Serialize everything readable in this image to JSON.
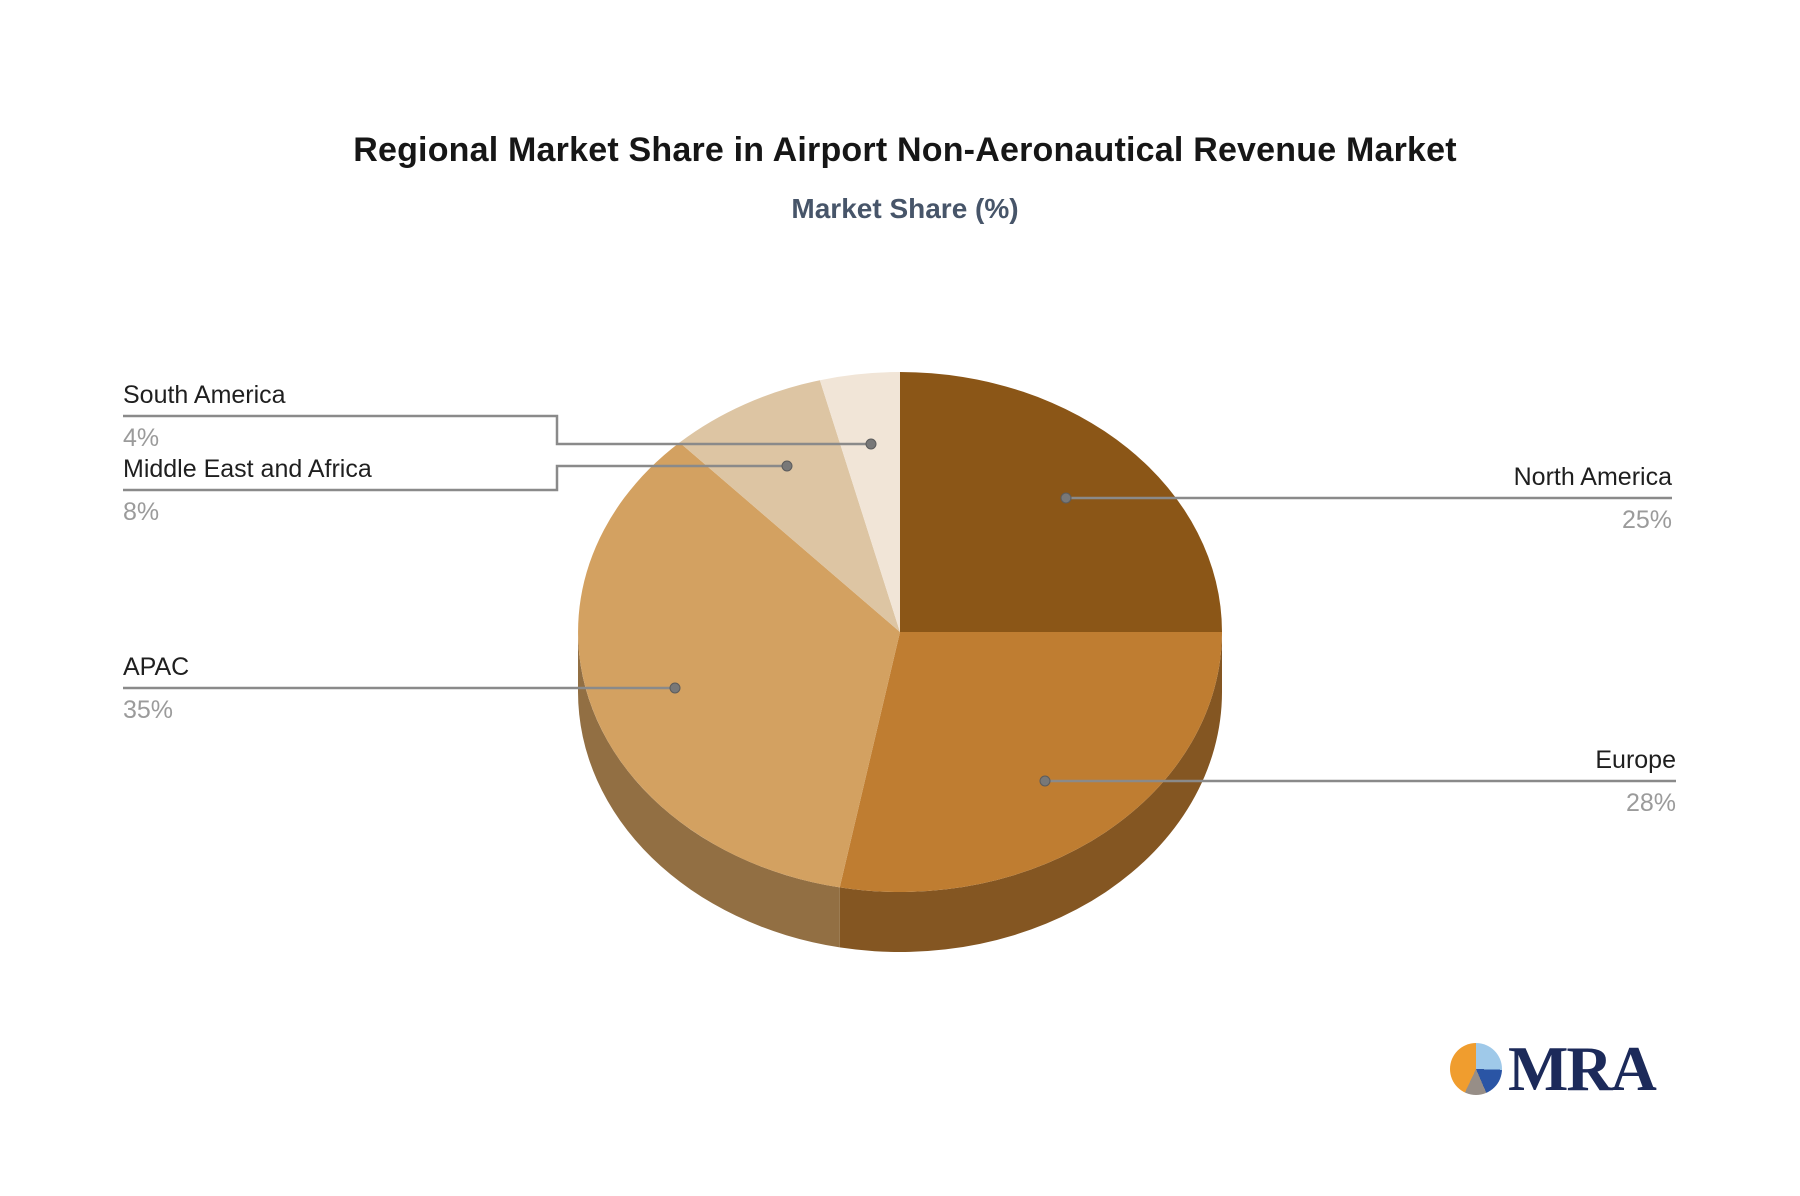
{
  "title": "Regional Market Share in Airport Non-Aeronautical Revenue Market",
  "subtitle": "Market Share (%)",
  "logo": {
    "text": "MRA"
  },
  "chart_data": {
    "type": "pie",
    "style": "3d",
    "title": "Regional Market Share in Airport Non-Aeronautical Revenue Market",
    "subtitle": "Market Share (%)",
    "unit": "%",
    "start_angle": "12 o'clock",
    "direction": "clockwise",
    "legend_position": "none (leader-line callout labels)",
    "slices": [
      {
        "label": "North America",
        "value": 25,
        "pct_label": "25%",
        "color": "#8B5617"
      },
      {
        "label": "Europe",
        "value": 28,
        "pct_label": "28%",
        "color": "#BF7D31"
      },
      {
        "label": "APAC",
        "value": 35,
        "pct_label": "35%",
        "color": "#D3A161"
      },
      {
        "label": "Middle East and Africa",
        "value": 8,
        "pct_label": "8%",
        "color": "#DDC5A3"
      },
      {
        "label": "South America",
        "value": 4,
        "pct_label": "4%",
        "color": "#F1E5D7"
      }
    ],
    "colors": {
      "leader_line": "#8a8a8a",
      "dot": "#787878",
      "label_text": "#1f1f1f",
      "percent_text": "#9b9b9b",
      "subtitle_text": "#475569"
    }
  }
}
